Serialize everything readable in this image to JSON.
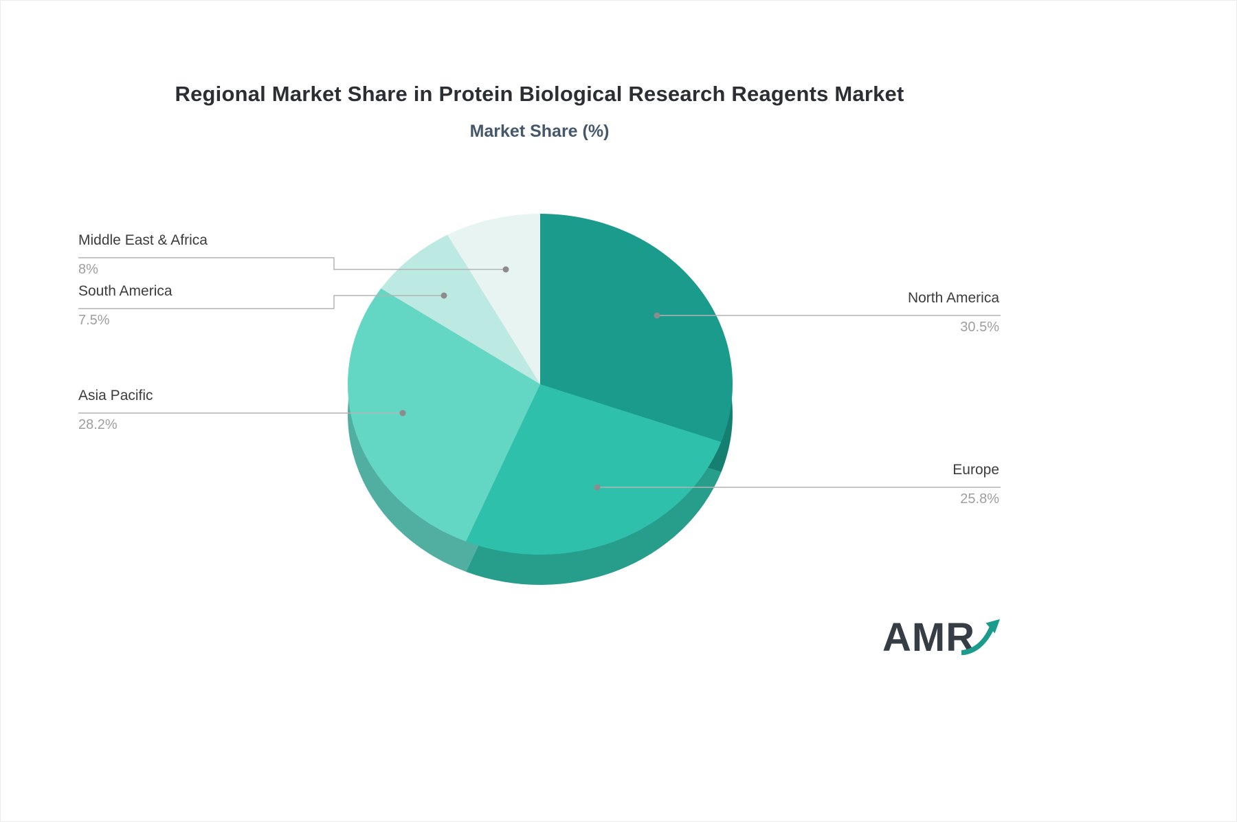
{
  "chart_data": {
    "type": "pie",
    "style": "3d",
    "title": "Regional Market Share in Protein Biological Research Reagents Market",
    "subtitle": "Market Share (%)",
    "labels": [
      "North America",
      "Europe",
      "Asia Pacific",
      "South America",
      "Middle East & Africa"
    ],
    "values": [
      30.5,
      25.8,
      28.2,
      7.5,
      8
    ],
    "value_labels": [
      "30.5%",
      "25.8%",
      "28.2%",
      "7.5%",
      "8%"
    ],
    "colors": [
      "#1a9b8b",
      "#2fc0ab",
      "#63d6c4",
      "#bce9e2",
      "#e7f4f1"
    ],
    "start_angle_deg": 0,
    "direction": "clockwise",
    "legend": "none",
    "label_style": "outside-callouts"
  },
  "leader_style": {
    "line_color": "#b3b3b3",
    "dot_color": "#8c8c8c"
  },
  "logo": {
    "text": "AMR",
    "arrow_color": "#1a9b8b"
  }
}
